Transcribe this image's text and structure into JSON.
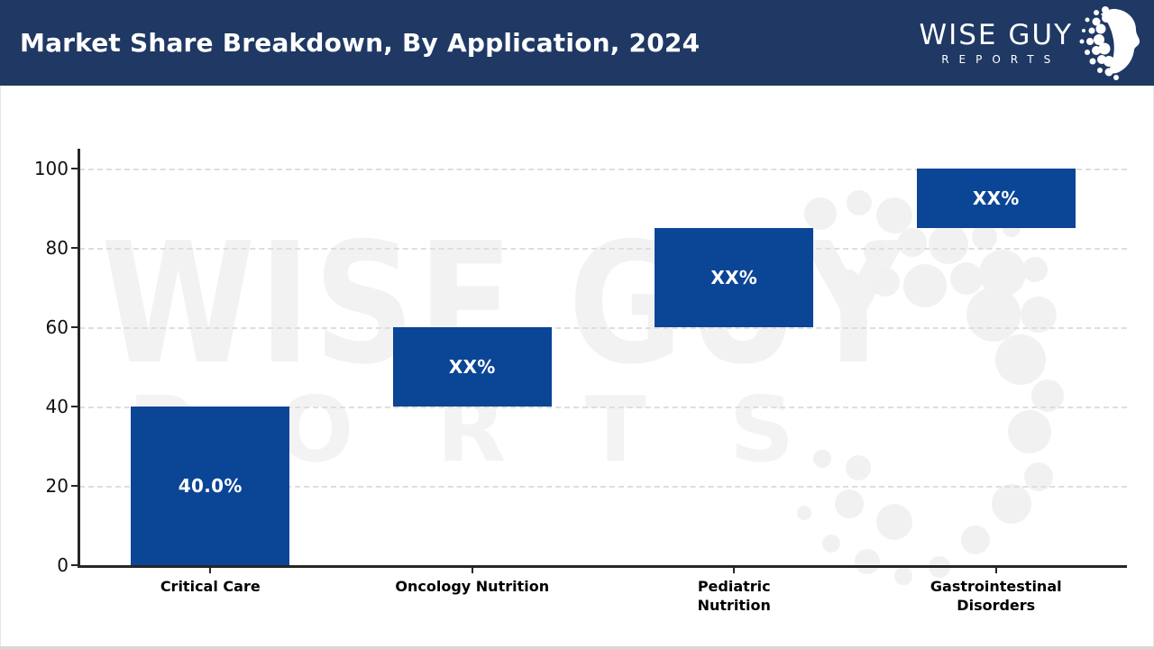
{
  "header": {
    "title": "Market Share Breakdown, By Application, 2024",
    "logo": {
      "line1": "WISE GUY",
      "line2": "REPORTS"
    }
  },
  "watermark": {
    "line1": "WISE GUY",
    "line2": "PORTS"
  },
  "chart_data": {
    "type": "bar",
    "subtype": "floating-waterfall",
    "title": "Market Share Breakdown, By Application, 2024",
    "categories": [
      "Critical Care",
      "Oncology Nutrition",
      "Pediatric Nutrition",
      "Gastrointestinal Disorders"
    ],
    "bars": [
      {
        "category": "Critical Care",
        "tick_label": "Critical Care",
        "start": 0,
        "end": 40,
        "value": 40,
        "label": "40.0%"
      },
      {
        "category": "Oncology Nutrition",
        "tick_label": "Oncology Nutrition",
        "start": 40,
        "end": 60,
        "value": 20,
        "label": "XX%"
      },
      {
        "category": "Pediatric Nutrition",
        "tick_label": "Pediatric\nNutrition",
        "start": 60,
        "end": 85,
        "value": 25,
        "label": "XX%"
      },
      {
        "category": "Gastrointestinal Disorders",
        "tick_label": "Gastrointestinal\nDisorders",
        "start": 85,
        "end": 100,
        "value": 15,
        "label": "XX%"
      }
    ],
    "yticks": [
      0,
      20,
      40,
      60,
      80,
      100
    ],
    "ylim": [
      0,
      105
    ],
    "xlabel": "",
    "ylabel": "",
    "grid": "horizontal-dashed",
    "legend": "none",
    "colors": {
      "bar": "#0B4596",
      "bar_label": "#FFFFFF",
      "axis": "#262626",
      "gridline": "#DEDEDE",
      "header_bg": "#1F3864",
      "title_text": "#FFFFFF",
      "watermark": "#F2F2F2"
    }
  }
}
